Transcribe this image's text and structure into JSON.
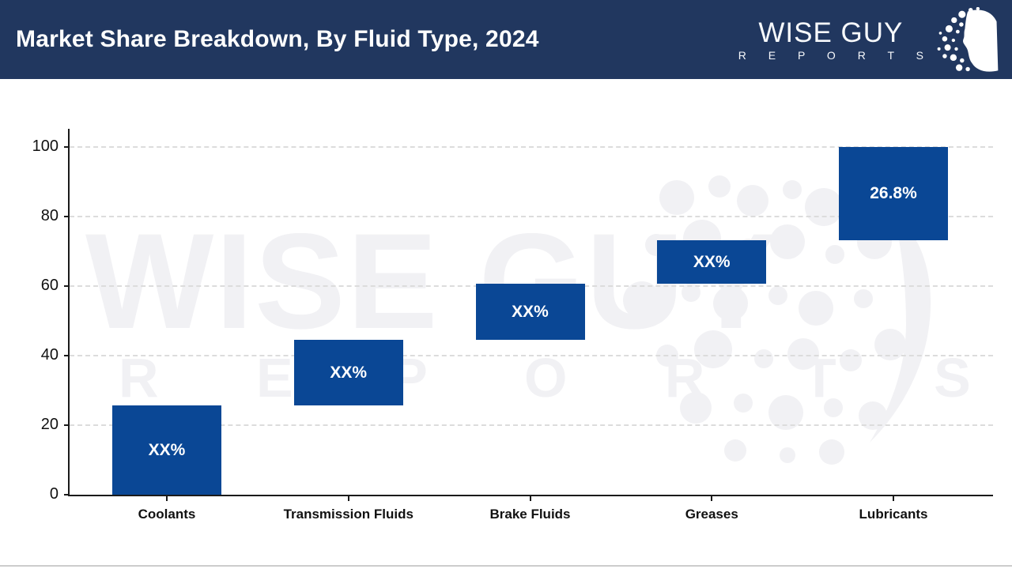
{
  "header": {
    "title": "Market Share Breakdown, By Fluid Type, 2024",
    "logo_line1": "WISE GUY",
    "logo_line2": "R E P O R T S",
    "logo_face_icon": "dotted-head-profile"
  },
  "watermark": {
    "line1": "WISE GUY",
    "line2": "R E P O R T S"
  },
  "colors": {
    "header_bg": "#21375f",
    "bar_fill": "#0a4795",
    "bar_label_text": "#ffffff",
    "gridline": "#dcdcdc",
    "axis": "#1a1a1a",
    "watermark": "#f1f1f4"
  },
  "chart_data": {
    "type": "bar",
    "variant": "waterfall",
    "title": "Market Share Breakdown, By Fluid Type, 2024",
    "categories": [
      "Coolants",
      "Transmission Fluids",
      "Brake Fluids",
      "Greases",
      "Lubricants"
    ],
    "bar_start": [
      0,
      25.6,
      44.6,
      60.6,
      73.2
    ],
    "bar_end": [
      25.6,
      44.6,
      60.6,
      73.2,
      100
    ],
    "bar_labels": [
      "XX%",
      "XX%",
      "XX%",
      "XX%",
      "26.8%"
    ],
    "ylim": [
      0,
      100
    ],
    "yticks": [
      0,
      20,
      40,
      60,
      80,
      100
    ],
    "xlabel": "",
    "ylabel": "",
    "grid": "horizontal-dashed",
    "legend_position": "none"
  }
}
